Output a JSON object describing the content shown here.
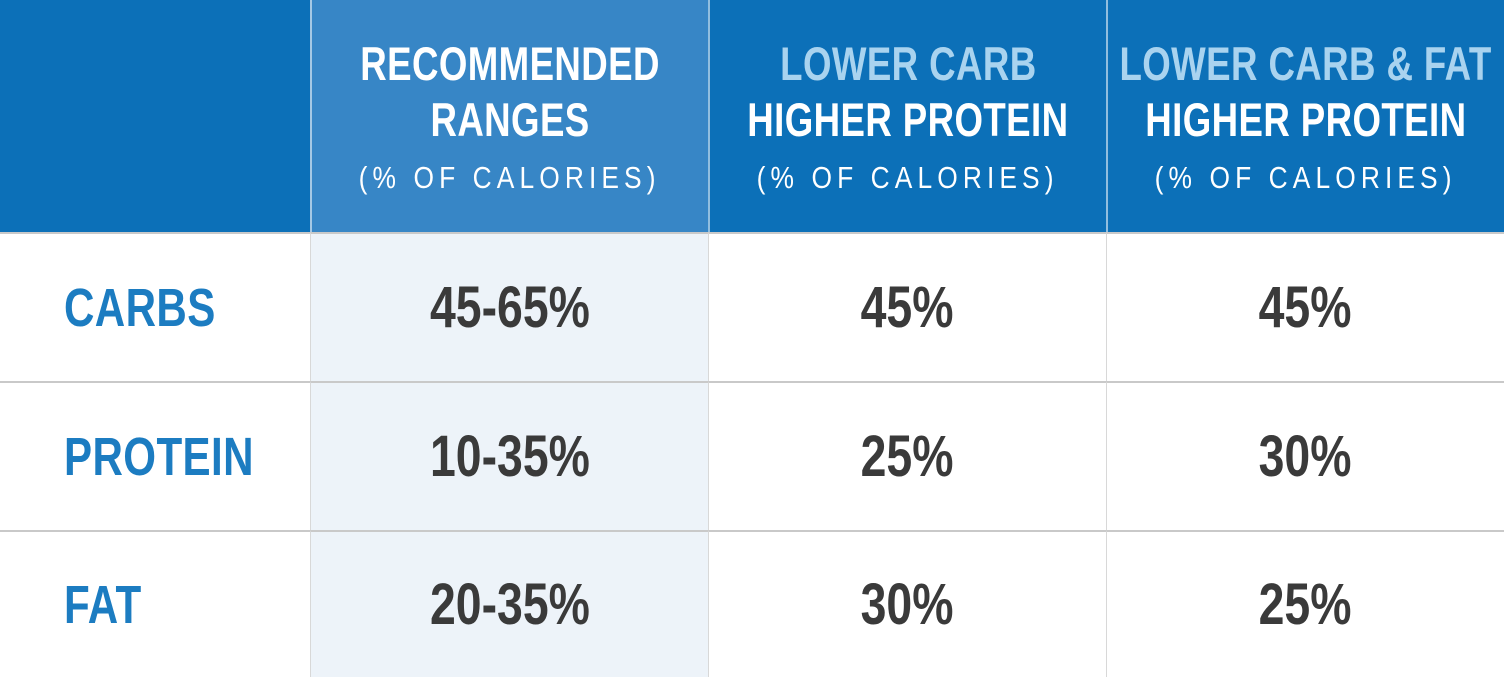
{
  "title": "Macronutrient distribution comparison table",
  "header": {
    "recommended": {
      "title_line1": "RECOMMENDED",
      "title_line2": "RANGES",
      "subtitle": "(% OF CALORIES)"
    },
    "lower_carb": {
      "title_line1": "LOWER CARB",
      "title_line2": "HIGHER PROTEIN",
      "subtitle": "(% OF CALORIES)"
    },
    "lower_carb_fat": {
      "title_line1": "LOWER CARB & FAT",
      "title_line2": "HIGHER PROTEIN",
      "subtitle": "(% OF CALORIES)"
    }
  },
  "rows": [
    {
      "label": "CARBS",
      "recommended": "45-65%",
      "lower_carb": "45%",
      "lower_carb_fat": "45%"
    },
    {
      "label": "PROTEIN",
      "recommended": "10-35%",
      "lower_carb": "25%",
      "lower_carb_fat": "30%"
    },
    {
      "label": "FAT",
      "recommended": "20-35%",
      "lower_carb": "30%",
      "lower_carb_fat": "25%"
    }
  ],
  "colors": {
    "header_dark_blue": "#0c70b8",
    "header_light_blue": "#3786c6",
    "header_accent_text": "#a9d3ef",
    "header_white_text": "#ffffff",
    "recommended_column_bg": "#edf3f9",
    "row_label_blue": "#1c7cc1",
    "value_text": "#3a3a3a",
    "grid_line": "#c9c9c9"
  },
  "chart_data": {
    "type": "table",
    "columns": [
      "",
      "RECOMMENDED RANGES (% OF CALORIES)",
      "LOWER CARB HIGHER PROTEIN (% OF CALORIES)",
      "LOWER CARB & FAT HIGHER PROTEIN (% OF CALORIES)"
    ],
    "rows": [
      [
        "CARBS",
        "45-65%",
        "45%",
        "45%"
      ],
      [
        "PROTEIN",
        "10-35%",
        "25%",
        "30%"
      ],
      [
        "FAT",
        "20-35%",
        "30%",
        "25%"
      ]
    ]
  }
}
